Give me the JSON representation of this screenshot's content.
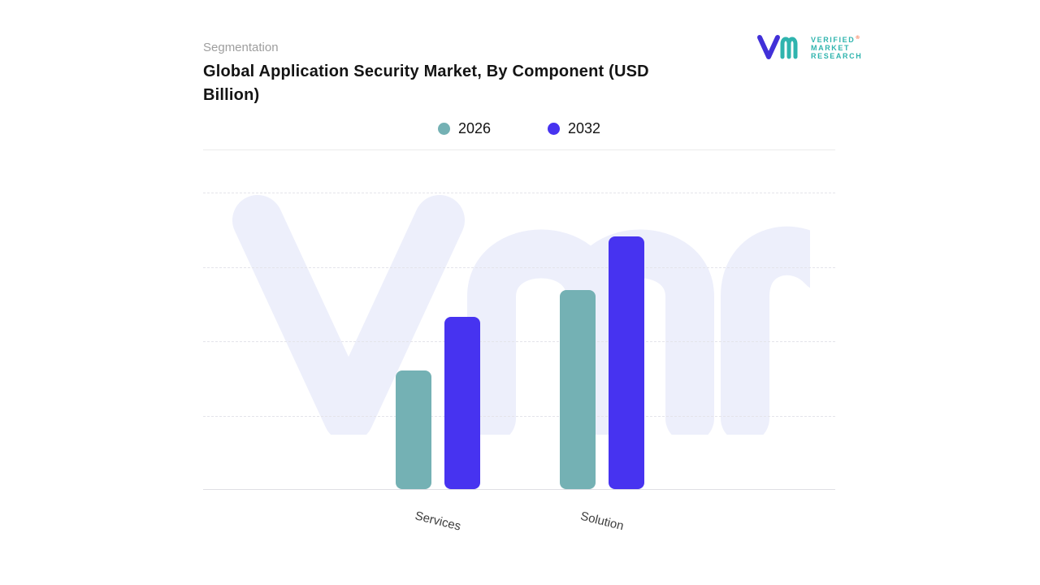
{
  "header": {
    "eyebrow": "Segmentation",
    "title": "Global Application Security Market, By Component (USD Billion)"
  },
  "logo": {
    "line1": "VERIFIED",
    "line2": "MARKET",
    "line3": "RESEARCH",
    "registered_mark": "®",
    "teal": "#2fb4ae",
    "indigo": "#4130d8"
  },
  "chart_data": {
    "type": "bar",
    "title": "Global Application Security Market, By Component (USD Billion)",
    "categories": [
      "Services",
      "Solution"
    ],
    "series": [
      {
        "name": "2026",
        "color": "#74b1b4",
        "values": [
          40,
          67
        ]
      },
      {
        "name": "2032",
        "color": "#4733f0",
        "values": [
          58,
          85
        ]
      }
    ],
    "xlabel": "",
    "ylabel": "",
    "ylim": [
      0,
      100
    ],
    "value_note": "y-axis unlabeled; values estimated relative to top gridline = 100",
    "grid": "horizontal dashed",
    "legend_position": "top",
    "watermark": "VMR monogram",
    "colors": {
      "grid": "#e4e4ea",
      "baseline": "#dfdfe4",
      "watermark": "#edeffb"
    }
  }
}
